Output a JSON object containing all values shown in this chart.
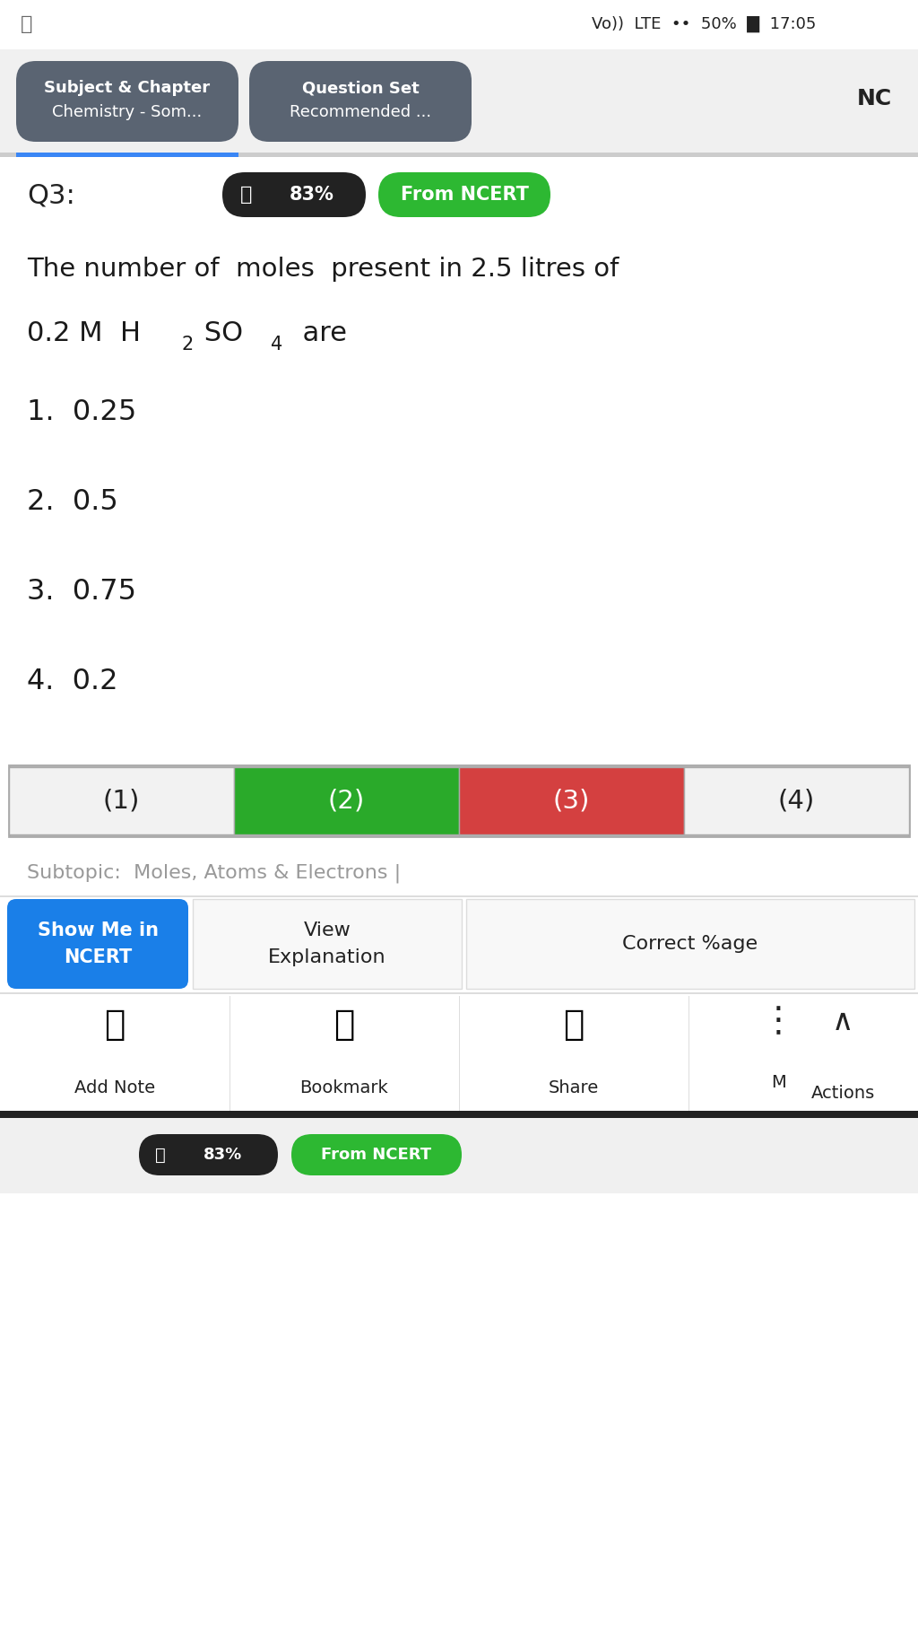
{
  "tab1_label1": "Subject & Chapter",
  "tab1_label2": "Chemistry - Som...",
  "tab2_label1": "Question Set",
  "tab2_label2": "Recommended ...",
  "tab3_label": "NC",
  "q_label": "Q3:",
  "like_pct": "83%",
  "ncert_badge": "From NCERT",
  "question_line1": "The number of  moles  present in 2.5 litres of",
  "question_line2": "0.2 M  H",
  "q_sub1": "2",
  "q_mid": " SO",
  "q_sub2": "4",
  "q_suffix": "  are",
  "options": [
    "1.  0.25",
    "2.  0.5",
    "3.  0.75",
    "4.  0.2"
  ],
  "answer_boxes": [
    "(1)",
    "(2)",
    "(3)",
    "(4)"
  ],
  "answer_colors": [
    "#f2f2f2",
    "#2aaa2a",
    "#d44040",
    "#f2f2f2"
  ],
  "answer_text_colors": [
    "#222222",
    "#ffffff",
    "#ffffff",
    "#222222"
  ],
  "subtopic": "Subtopic:  Moles, Atoms & Electrons |",
  "btn1_text": "Show Me in\nNCERT",
  "btn2_text": "View\nExplanation",
  "btn3_text": "Correct %age",
  "icon1_text": "Add Note",
  "icon2_text": "Bookmark",
  "icon3_text": "Share",
  "icon4a_text": "M",
  "icon4b_text": "Actions",
  "bg_color": "#ffffff",
  "tab_bg": "#5a6472",
  "green_btn": "#2db832",
  "blue_btn": "#1a7fe8",
  "text_dark": "#1a1a1a",
  "text_gray": "#999999",
  "status_right": "Vo))  LTE  ••  50%  █  17:05"
}
